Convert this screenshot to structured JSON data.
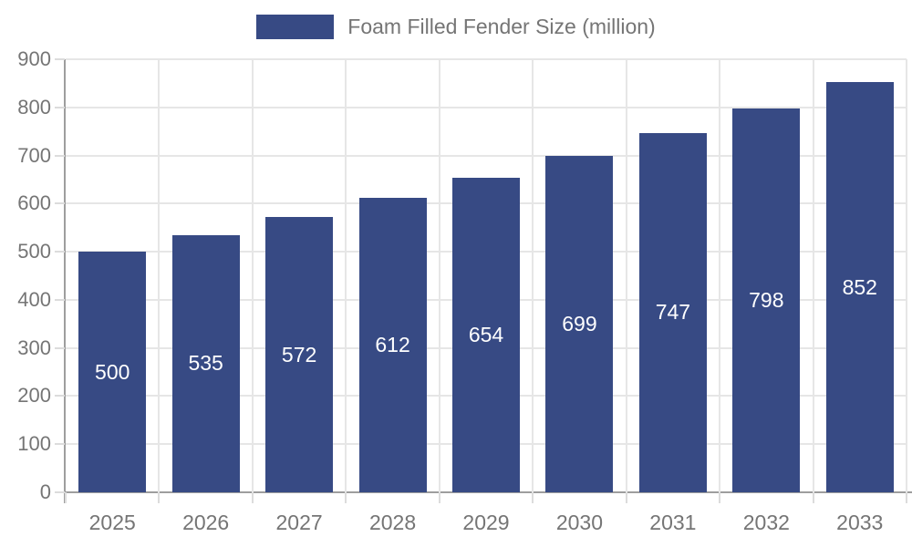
{
  "legend": {
    "label": "Foam Filled Fender Size (million)"
  },
  "chart_data": {
    "type": "bar",
    "title": "",
    "xlabel": "",
    "ylabel": "",
    "categories": [
      "2025",
      "2026",
      "2027",
      "2028",
      "2029",
      "2030",
      "2031",
      "2032",
      "2033"
    ],
    "series": [
      {
        "name": "Foam Filled Fender Size (million)",
        "values": [
          500,
          535,
          572,
          612,
          654,
          699,
          747,
          798,
          852
        ]
      }
    ],
    "data_labels": [
      "500",
      "535",
      "572",
      "612",
      "654",
      "699",
      "747",
      "798",
      "852"
    ],
    "ylim": [
      0,
      900
    ],
    "ytick_step": 100,
    "ytick_labels": [
      "0",
      "100",
      "200",
      "300",
      "400",
      "500",
      "600",
      "700",
      "800",
      "900"
    ],
    "grid": true,
    "legend_position": "top-center"
  },
  "colors": {
    "bar": "#374a84",
    "grid": "#e6e6e6",
    "axis": "#9e9e9e",
    "tick": "#dcdcdc",
    "axis_text": "#757575",
    "bar_label_text": "#ffffff",
    "background": "#ffffff"
  }
}
